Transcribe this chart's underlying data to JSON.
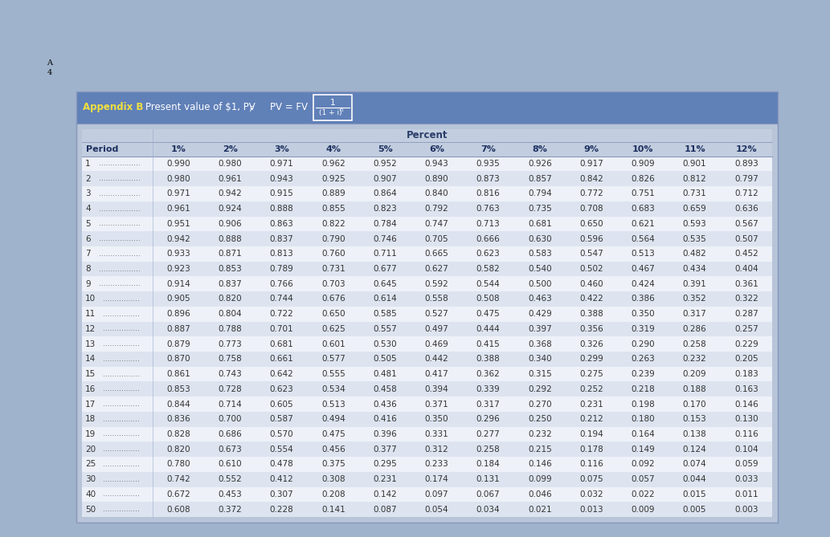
{
  "title_appendix": "Appendix B",
  "title_desc": "Present value of $1, PV",
  "subscript_if": "F",
  "formula_text": "PV = FV",
  "header_bg": "#6080b8",
  "table_outer_bg": "#b8c8de",
  "table_inner_bg": "#d0daea",
  "col_header_bg": "#c0cedf",
  "row_even_bg": "#eef1f8",
  "row_odd_bg": "#dde4f0",
  "outer_bg": "#9fb3cc",
  "page_bg": "#ffffff",
  "top_bar_color": "#7090c0",
  "percent_label": "Percent",
  "columns": [
    "Period",
    "1%",
    "2%",
    "3%",
    "4%",
    "5%",
    "6%",
    "7%",
    "8%",
    "9%",
    "10%",
    "11%",
    "12%"
  ],
  "rows": [
    [
      "1",
      "0.990",
      "0.980",
      "0.971",
      "0.962",
      "0.952",
      "0.943",
      "0.935",
      "0.926",
      "0.917",
      "0.909",
      "0.901",
      "0.893"
    ],
    [
      "2",
      "0.980",
      "0.961",
      "0.943",
      "0.925",
      "0.907",
      "0.890",
      "0.873",
      "0.857",
      "0.842",
      "0.826",
      "0.812",
      "0.797"
    ],
    [
      "3",
      "0.971",
      "0.942",
      "0.915",
      "0.889",
      "0.864",
      "0.840",
      "0.816",
      "0.794",
      "0.772",
      "0.751",
      "0.731",
      "0.712"
    ],
    [
      "4",
      "0.961",
      "0.924",
      "0.888",
      "0.855",
      "0.823",
      "0.792",
      "0.763",
      "0.735",
      "0.708",
      "0.683",
      "0.659",
      "0.636"
    ],
    [
      "5",
      "0.951",
      "0.906",
      "0.863",
      "0.822",
      "0.784",
      "0.747",
      "0.713",
      "0.681",
      "0.650",
      "0.621",
      "0.593",
      "0.567"
    ],
    [
      "6",
      "0.942",
      "0.888",
      "0.837",
      "0.790",
      "0.746",
      "0.705",
      "0.666",
      "0.630",
      "0.596",
      "0.564",
      "0.535",
      "0.507"
    ],
    [
      "7",
      "0.933",
      "0.871",
      "0.813",
      "0.760",
      "0.711",
      "0.665",
      "0.623",
      "0.583",
      "0.547",
      "0.513",
      "0.482",
      "0.452"
    ],
    [
      "8",
      "0.923",
      "0.853",
      "0.789",
      "0.731",
      "0.677",
      "0.627",
      "0.582",
      "0.540",
      "0.502",
      "0.467",
      "0.434",
      "0.404"
    ],
    [
      "9",
      "0.914",
      "0.837",
      "0.766",
      "0.703",
      "0.645",
      "0.592",
      "0.544",
      "0.500",
      "0.460",
      "0.424",
      "0.391",
      "0.361"
    ],
    [
      "10",
      "0.905",
      "0.820",
      "0.744",
      "0.676",
      "0.614",
      "0.558",
      "0.508",
      "0.463",
      "0.422",
      "0.386",
      "0.352",
      "0.322"
    ],
    [
      "11",
      "0.896",
      "0.804",
      "0.722",
      "0.650",
      "0.585",
      "0.527",
      "0.475",
      "0.429",
      "0.388",
      "0.350",
      "0.317",
      "0.287"
    ],
    [
      "12",
      "0.887",
      "0.788",
      "0.701",
      "0.625",
      "0.557",
      "0.497",
      "0.444",
      "0.397",
      "0.356",
      "0.319",
      "0.286",
      "0.257"
    ],
    [
      "13",
      "0.879",
      "0.773",
      "0.681",
      "0.601",
      "0.530",
      "0.469",
      "0.415",
      "0.368",
      "0.326",
      "0.290",
      "0.258",
      "0.229"
    ],
    [
      "14",
      "0.870",
      "0.758",
      "0.661",
      "0.577",
      "0.505",
      "0.442",
      "0.388",
      "0.340",
      "0.299",
      "0.263",
      "0.232",
      "0.205"
    ],
    [
      "15",
      "0.861",
      "0.743",
      "0.642",
      "0.555",
      "0.481",
      "0.417",
      "0.362",
      "0.315",
      "0.275",
      "0.239",
      "0.209",
      "0.183"
    ],
    [
      "16",
      "0.853",
      "0.728",
      "0.623",
      "0.534",
      "0.458",
      "0.394",
      "0.339",
      "0.292",
      "0.252",
      "0.218",
      "0.188",
      "0.163"
    ],
    [
      "17",
      "0.844",
      "0.714",
      "0.605",
      "0.513",
      "0.436",
      "0.371",
      "0.317",
      "0.270",
      "0.231",
      "0.198",
      "0.170",
      "0.146"
    ],
    [
      "18",
      "0.836",
      "0.700",
      "0.587",
      "0.494",
      "0.416",
      "0.350",
      "0.296",
      "0.250",
      "0.212",
      "0.180",
      "0.153",
      "0.130"
    ],
    [
      "19",
      "0.828",
      "0.686",
      "0.570",
      "0.475",
      "0.396",
      "0.331",
      "0.277",
      "0.232",
      "0.194",
      "0.164",
      "0.138",
      "0.116"
    ],
    [
      "20",
      "0.820",
      "0.673",
      "0.554",
      "0.456",
      "0.377",
      "0.312",
      "0.258",
      "0.215",
      "0.178",
      "0.149",
      "0.124",
      "0.104"
    ],
    [
      "25",
      "0.780",
      "0.610",
      "0.478",
      "0.375",
      "0.295",
      "0.233",
      "0.184",
      "0.146",
      "0.116",
      "0.092",
      "0.074",
      "0.059"
    ],
    [
      "30",
      "0.742",
      "0.552",
      "0.412",
      "0.308",
      "0.231",
      "0.174",
      "0.131",
      "0.099",
      "0.075",
      "0.057",
      "0.044",
      "0.033"
    ],
    [
      "40",
      "0.672",
      "0.453",
      "0.307",
      "0.208",
      "0.142",
      "0.097",
      "0.067",
      "0.046",
      "0.032",
      "0.022",
      "0.015",
      "0.011"
    ],
    [
      "50",
      "0.608",
      "0.372",
      "0.228",
      "0.141",
      "0.087",
      "0.054",
      "0.034",
      "0.021",
      "0.013",
      "0.009",
      "0.005",
      "0.003"
    ]
  ]
}
